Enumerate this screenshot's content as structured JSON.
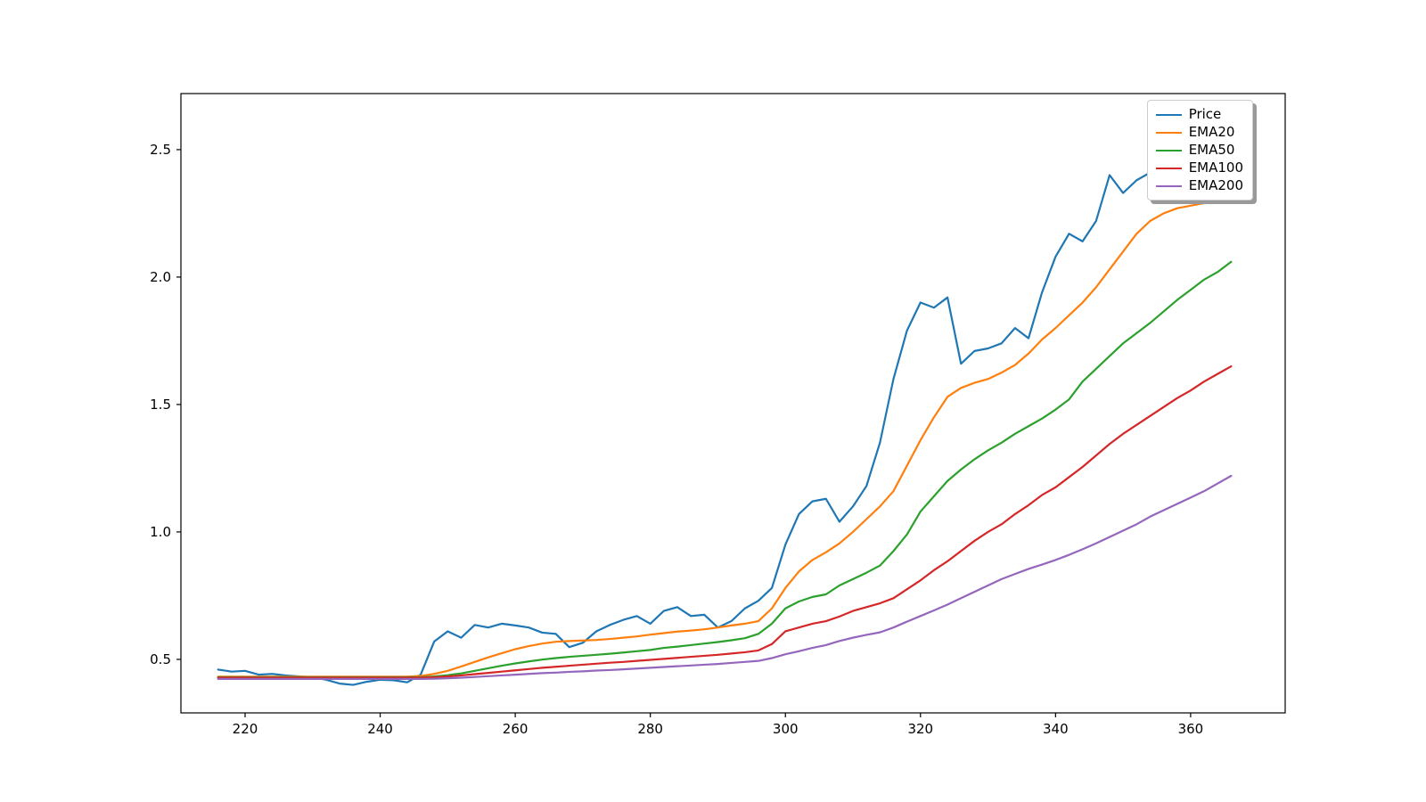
{
  "figure": {
    "background_color": "#ffffff",
    "plot_border_color": "#000000"
  },
  "legend": {
    "position": "upper right",
    "border_color": "#cccccc",
    "shadow_color": "#999999",
    "entries": [
      "Price",
      "EMA20",
      "EMA50",
      "EMA100",
      "EMA200"
    ]
  },
  "chart_data": {
    "type": "line",
    "title": "",
    "xlabel": "",
    "ylabel": "",
    "grid": false,
    "x_range": [
      210.5,
      374
    ],
    "y_range": [
      0.29,
      2.72
    ],
    "x_ticks": [
      220,
      240,
      260,
      280,
      300,
      320,
      340,
      360
    ],
    "y_ticks": [
      0.5,
      1.0,
      1.5,
      2.0,
      2.5
    ],
    "x": [
      216,
      218,
      220,
      222,
      224,
      226,
      228,
      230,
      232,
      234,
      236,
      238,
      240,
      242,
      244,
      246,
      248,
      250,
      252,
      254,
      256,
      258,
      260,
      262,
      264,
      266,
      268,
      270,
      272,
      274,
      276,
      278,
      280,
      282,
      284,
      286,
      288,
      290,
      292,
      294,
      296,
      298,
      300,
      302,
      304,
      306,
      308,
      310,
      312,
      314,
      316,
      318,
      320,
      322,
      324,
      326,
      328,
      330,
      332,
      334,
      336,
      338,
      340,
      342,
      344,
      346,
      348,
      350,
      352,
      354,
      356,
      358,
      360,
      362,
      364,
      366
    ],
    "series": [
      {
        "name": "Price",
        "color": "#1f77b4",
        "values": [
          0.46,
          0.452,
          0.455,
          0.44,
          0.443,
          0.437,
          0.433,
          0.43,
          0.42,
          0.405,
          0.4,
          0.412,
          0.42,
          0.418,
          0.41,
          0.44,
          0.57,
          0.61,
          0.585,
          0.635,
          0.625,
          0.64,
          0.633,
          0.625,
          0.605,
          0.6,
          0.548,
          0.565,
          0.61,
          0.635,
          0.655,
          0.67,
          0.64,
          0.69,
          0.705,
          0.67,
          0.675,
          0.625,
          0.65,
          0.7,
          0.73,
          0.78,
          0.95,
          1.07,
          1.12,
          1.13,
          1.04,
          1.1,
          1.18,
          1.35,
          1.6,
          1.79,
          1.9,
          1.88,
          1.92,
          1.66,
          1.71,
          1.72,
          1.74,
          1.8,
          1.76,
          1.94,
          2.08,
          2.17,
          2.14,
          2.22,
          2.4,
          2.33,
          2.38,
          2.41,
          2.32,
          2.38,
          2.35,
          2.4,
          2.38,
          2.4
        ]
      },
      {
        "name": "EMA20",
        "color": "#ff7f0e",
        "values": [
          0.432,
          0.432,
          0.432,
          0.432,
          0.432,
          0.432,
          0.432,
          0.432,
          0.432,
          0.432,
          0.432,
          0.432,
          0.432,
          0.432,
          0.432,
          0.435,
          0.443,
          0.455,
          0.472,
          0.49,
          0.508,
          0.524,
          0.54,
          0.552,
          0.562,
          0.569,
          0.572,
          0.574,
          0.576,
          0.58,
          0.585,
          0.59,
          0.597,
          0.603,
          0.609,
          0.613,
          0.618,
          0.625,
          0.633,
          0.64,
          0.65,
          0.7,
          0.78,
          0.845,
          0.89,
          0.92,
          0.955,
          1.0,
          1.05,
          1.1,
          1.16,
          1.26,
          1.36,
          1.45,
          1.53,
          1.565,
          1.585,
          1.6,
          1.625,
          1.655,
          1.7,
          1.755,
          1.8,
          1.85,
          1.9,
          1.96,
          2.03,
          2.1,
          2.17,
          2.22,
          2.25,
          2.27,
          2.28,
          2.29,
          2.3,
          2.31
        ]
      },
      {
        "name": "EMA50",
        "color": "#2ca02c",
        "values": [
          0.43,
          0.43,
          0.43,
          0.43,
          0.43,
          0.43,
          0.43,
          0.43,
          0.43,
          0.43,
          0.43,
          0.43,
          0.43,
          0.43,
          0.43,
          0.43,
          0.433,
          0.438,
          0.445,
          0.455,
          0.465,
          0.475,
          0.484,
          0.492,
          0.499,
          0.505,
          0.51,
          0.514,
          0.518,
          0.522,
          0.527,
          0.532,
          0.537,
          0.545,
          0.55,
          0.556,
          0.562,
          0.568,
          0.575,
          0.583,
          0.6,
          0.64,
          0.7,
          0.727,
          0.745,
          0.755,
          0.79,
          0.815,
          0.84,
          0.868,
          0.925,
          0.99,
          1.08,
          1.14,
          1.2,
          1.245,
          1.285,
          1.32,
          1.35,
          1.385,
          1.415,
          1.445,
          1.48,
          1.52,
          1.59,
          1.64,
          1.69,
          1.74,
          1.78,
          1.82,
          1.865,
          1.91,
          1.95,
          1.99,
          2.02,
          2.06
        ]
      },
      {
        "name": "EMA100",
        "color": "#d62728",
        "values": [
          0.428,
          0.428,
          0.428,
          0.428,
          0.428,
          0.428,
          0.428,
          0.428,
          0.428,
          0.428,
          0.428,
          0.428,
          0.428,
          0.428,
          0.428,
          0.428,
          0.43,
          0.433,
          0.437,
          0.442,
          0.447,
          0.452,
          0.457,
          0.462,
          0.467,
          0.471,
          0.475,
          0.479,
          0.483,
          0.487,
          0.49,
          0.494,
          0.498,
          0.502,
          0.506,
          0.51,
          0.514,
          0.518,
          0.523,
          0.528,
          0.535,
          0.56,
          0.61,
          0.625,
          0.64,
          0.65,
          0.668,
          0.69,
          0.705,
          0.72,
          0.74,
          0.775,
          0.81,
          0.85,
          0.885,
          0.925,
          0.965,
          1.0,
          1.03,
          1.07,
          1.105,
          1.145,
          1.175,
          1.215,
          1.255,
          1.3,
          1.345,
          1.385,
          1.42,
          1.455,
          1.49,
          1.525,
          1.555,
          1.59,
          1.62,
          1.65
        ]
      },
      {
        "name": "EMA200",
        "color": "#9467bd",
        "values": [
          0.423,
          0.423,
          0.423,
          0.423,
          0.423,
          0.423,
          0.423,
          0.423,
          0.423,
          0.423,
          0.423,
          0.423,
          0.423,
          0.423,
          0.423,
          0.423,
          0.424,
          0.426,
          0.428,
          0.431,
          0.434,
          0.437,
          0.44,
          0.443,
          0.446,
          0.448,
          0.451,
          0.453,
          0.456,
          0.458,
          0.461,
          0.464,
          0.467,
          0.47,
          0.473,
          0.476,
          0.479,
          0.482,
          0.486,
          0.49,
          0.494,
          0.505,
          0.52,
          0.532,
          0.545,
          0.556,
          0.572,
          0.585,
          0.596,
          0.606,
          0.625,
          0.648,
          0.67,
          0.692,
          0.715,
          0.74,
          0.765,
          0.79,
          0.815,
          0.835,
          0.855,
          0.872,
          0.89,
          0.91,
          0.932,
          0.955,
          0.98,
          1.005,
          1.03,
          1.06,
          1.085,
          1.11,
          1.135,
          1.16,
          1.19,
          1.22
        ]
      }
    ]
  }
}
